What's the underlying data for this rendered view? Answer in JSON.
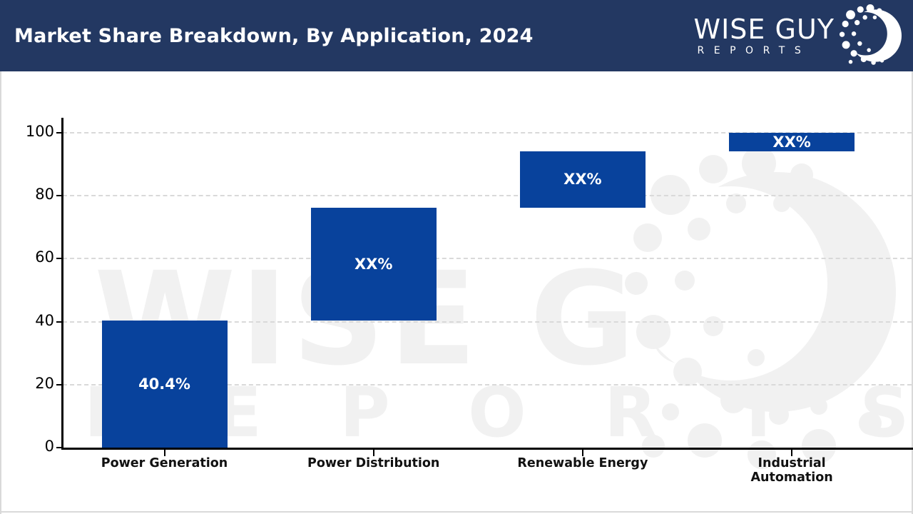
{
  "header": {
    "title": "Market Share Breakdown, By Application, 2024",
    "bg_color": "#233862",
    "logo": {
      "line1": "WISE GUY",
      "line2": "REPORTS"
    }
  },
  "watermark": {
    "line1": "WISE GUY",
    "line2": "R E P O R T S"
  },
  "chart_data": {
    "type": "bar",
    "variant": "stepped-waterfall",
    "title": "Market Share Breakdown, By Application, 2024",
    "categories": [
      "Power Generation",
      "Power Distribution",
      "Renewable Energy",
      "Industrial\nAutomation"
    ],
    "series": [
      {
        "name": "Market share by application",
        "cumulative": true,
        "values": [
          40.4,
          35.9,
          17.8,
          5.9
        ],
        "labels": [
          "40.4%",
          "XX%",
          "XX%",
          "XX%"
        ]
      }
    ],
    "yticks": [
      0,
      20,
      40,
      60,
      80,
      100
    ],
    "ylim": [
      0,
      104.8
    ],
    "xlabel": "",
    "ylabel": "",
    "legend": "none",
    "grid": {
      "axis": "y",
      "style": "dashed",
      "color": "#d9d9d9"
    },
    "bar_color": "#08429c",
    "bar_label_color": "#ffffff",
    "axis_color": "#000000",
    "tick_label_color": "#000000",
    "redacted_label": "XX%"
  }
}
